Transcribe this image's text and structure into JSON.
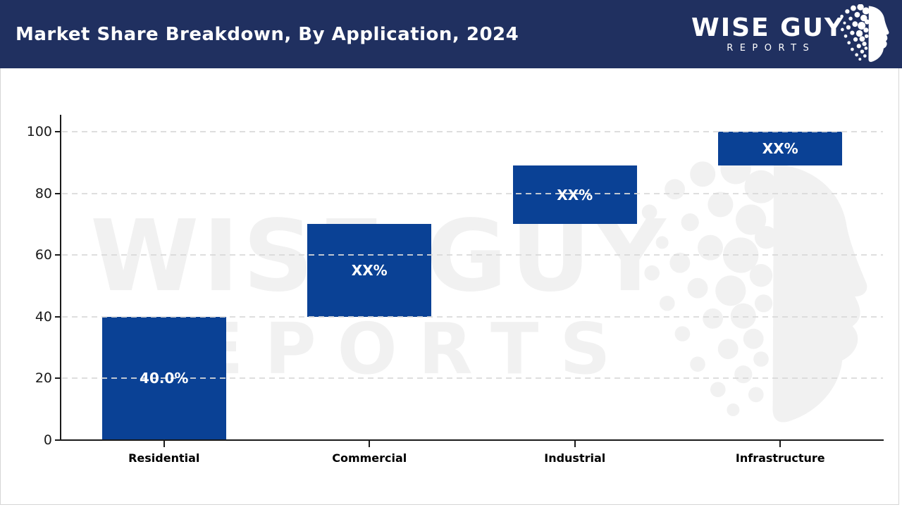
{
  "header": {
    "title": "Market Share Breakdown, By Application, 2024",
    "logo": {
      "wordmark": "WISE GUY",
      "sub": "REPORTS",
      "face_icon": "face-profile-dots-icon"
    }
  },
  "watermark": {
    "wordmark": "WISE GUY",
    "sub": "REPORTS"
  },
  "colors": {
    "header_bg": "#203060",
    "bar": "#0a4195",
    "gridline": "#d9d9d9",
    "axis": "#1a1a1a",
    "watermark": "#f1f1f1",
    "bar_label": "#ffffff"
  },
  "chart_data": {
    "type": "bar",
    "variant": "waterfall",
    "title": "Market Share Breakdown, By Application, 2024",
    "categories": [
      "Residential",
      "Commercial",
      "Industrial",
      "Infrastructure"
    ],
    "segments": [
      {
        "category": "Residential",
        "start": 0,
        "end": 40,
        "value": 40.0,
        "label": "40.0%"
      },
      {
        "category": "Commercial",
        "start": 40,
        "end": 70,
        "value": 30.0,
        "label": "XX%"
      },
      {
        "category": "Industrial",
        "start": 70,
        "end": 89,
        "value": 19.0,
        "label": "XX%"
      },
      {
        "category": "Infrastructure",
        "start": 89,
        "end": 100,
        "value": 11.0,
        "label": "XX%"
      }
    ],
    "ylim": [
      0,
      100
    ],
    "yticks": [
      0,
      20,
      40,
      60,
      80,
      100
    ],
    "grid": {
      "axis": "y",
      "style": "dashed",
      "drawn_over_bars": true
    },
    "legend": null,
    "bar_color": "#0a4195",
    "bar_label_color": "#ffffff"
  }
}
